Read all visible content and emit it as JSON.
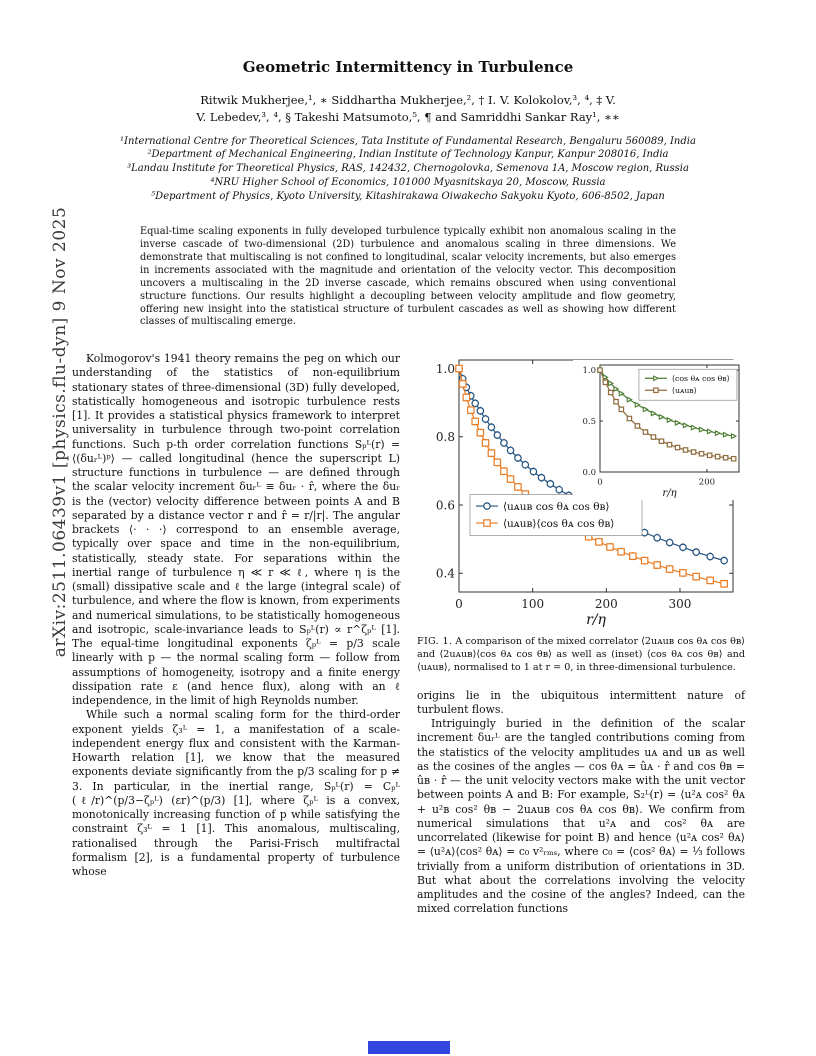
{
  "page": {
    "footer_box_color": "#3347e0"
  },
  "sidebar": {
    "arxiv_text": "arXiv:2511.06439v1  [physics.flu-dyn]  9 Nov 2025"
  },
  "header": {
    "title": "Geometric Intermittency in Turbulence",
    "authors_line1": "Ritwik Mukherjee,¹, ∗ Siddhartha Mukherjee,², † I. V. Kolokolov,³, ⁴, ‡ V.",
    "authors_line2": "V. Lebedev,³, ⁴, § Takeshi Matsumoto,⁵, ¶ and Samriddhi Sankar Ray¹, ∗∗",
    "affiliations": [
      "¹International Centre for Theoretical Sciences, Tata Institute of Fundamental Research, Bengaluru 560089, India",
      "²Department of Mechanical Engineering, Indian Institute of Technology Kanpur, Kanpur 208016, India",
      "³Landau Institute for Theoretical Physics, RAS, 142432, Chernogolovka, Semenova 1A, Moscow region, Russia",
      "⁴NRU Higher School of Economics, 101000 Myasnitskaya 20, Moscow, Russia",
      "⁵Department of Physics, Kyoto University, Kitashirakawa Oiwakecho Sakyoku Kyoto, 606-8502, Japan"
    ]
  },
  "abstract": "Equal-time scaling exponents in fully developed turbulence typically exhibit non anomalous scaling in the inverse cascade of two-dimensional (2D) turbulence and anomalous scaling in three dimensions. We demonstrate that multiscaling is not confined to longitudinal, scalar velocity increments, but also emerges in increments associated with the magnitude and orientation of the velocity vector. This decomposition uncovers a multiscaling in the 2D inverse cascade, which remains obscured when using conventional structure functions. Our results highlight a decoupling between velocity amplitude and flow geometry, offering new insight into the statistical structure of turbulent cascades as well as showing how different classes of multiscaling emerge.",
  "body": {
    "left_paragraphs": [
      "Kolmogorov's 1941 theory remains the peg on which our understanding of the statistics of non-equilibrium stationary states of three-dimensional (3D) fully developed, statistically homogeneous and isotropic turbulence rests [1]. It provides a statistical physics framework to interpret universality in turbulence through two-point correlation functions. Such p-th order correlation functions Sₚᴸ(r) = ⟨(δuᵣᴸ)ᵖ⟩ — called longitudinal (hence the superscript L) structure functions in turbulence — are defined through the scalar velocity increment δuᵣᴸ ≡ δuᵣ · r̂, where the δuᵣ is the (vector) velocity difference between points A and B separated by a distance vector r and r̂ = r/|r|. The angular brackets ⟨· · ·⟩ correspond to an ensemble average, typically over space and time in the non-equilibrium, statistically, steady state. For separations within the inertial range of turbulence η ≪ r ≪ ℓ, where η is the (small) dissipative scale and ℓ the large (integral scale) of turbulence, and where the flow is known, from experiments and numerical simulations, to be statistically homogeneous and isotropic, scale-invariance leads to Sₚᴸ(r) ∝ r^ζₚᴸ [1]. The equal-time longitudinal exponents ζₚᴸ = p/3 scale linearly with p — the normal scaling form — follow from assumptions of homogeneity, isotropy and a finite energy dissipation rate ε (and hence flux), along with an ℓ independence, in the limit of high Reynolds number.",
      "While such a normal scaling form for the third-order exponent yields ζ₃ᴸ = 1, a manifestation of a scale-independent energy flux and consistent with the Karman-Howarth relation [1], we know that the measured exponents deviate significantly from the p/3 scaling for p ≠ 3. In particular, in the inertial range, Sₚᴸ(r) = Cₚᴸ (ℓ/r)^(p/3−ζₚᴸ) (εr)^(p/3) [1], where ζₚᴸ is a convex, monotonically increasing function of p while satisfying the constraint ζ₃ᴸ = 1 [1]. This anomalous, multiscaling, rationalised through the Parisi-Frisch multifractal formalism [2], is a fundamental property of turbulence whose"
    ],
    "right_paragraphs": [
      "origins lie in the ubiquitous intermittent nature of turbulent flows.",
      "Intriguingly buried in the definition of the scalar increment δuᵣᴸ are the tangled contributions coming from the statistics of the velocity amplitudes uᴀ and uʙ as well as the cosines of the angles — cos θᴀ = ûᴀ · r̂ and cos θʙ = ûʙ · r̂ — the unit velocity vectors make with the unit vector between points A and B: For example, S₂ᴸ(r) = ⟨u²ᴀ cos² θᴀ + u²ʙ cos² θʙ − 2uᴀuʙ cos θᴀ cos θʙ⟩. We confirm from numerical simulations that u²ᴀ and cos² θᴀ are uncorrelated (likewise for point B) and hence ⟨u²ᴀ cos² θᴀ⟩ = ⟨u²ᴀ⟩⟨cos² θᴀ⟩ = c₀ v²ᵣₘₛ, where c₀ = ⟨cos² θᴀ⟩ = ⅓ follows trivially from a uniform distribution of orientations in 3D. But what about the correlations involving the velocity amplitudes and the cosine of the angles? Indeed, can the mixed correlation functions"
    ]
  },
  "figure": {
    "caption_label": "FIG. 1.",
    "caption_text": "A comparison of the mixed correlator ⟨2uᴀuʙ cos θᴀ cos θʙ⟩ and ⟨2uᴀuʙ⟩⟨cos θᴀ cos θʙ⟩ as well as (inset) ⟨cos θᴀ cos θʙ⟩ and ⟨uᴀuʙ⟩, normalised to 1 at r = 0, in three-dimensional turbulence.",
    "chart_data": {
      "type": "line",
      "xlabel": "r/η",
      "xlim": [
        0,
        372
      ],
      "ylim": [
        0.345,
        1.025
      ],
      "xticks": [
        0,
        100,
        200,
        300
      ],
      "yticks": [
        0.4,
        0.6,
        0.8,
        1.0
      ],
      "err": 0.012,
      "legend_position": "lower-left",
      "series": [
        {
          "name": "⟨uᴀuʙ cos θᴀ cos θʙ⟩",
          "color": "#20507d",
          "marker": "circle",
          "x": [
            0,
            5,
            10,
            16,
            22,
            29,
            36,
            44,
            52,
            61,
            70,
            80,
            90,
            101,
            112,
            124,
            136,
            149,
            162,
            176,
            190,
            205,
            220,
            236,
            252,
            269,
            286,
            304,
            322,
            341,
            360
          ],
          "y": [
            1.0,
            0.97,
            0.945,
            0.92,
            0.898,
            0.876,
            0.852,
            0.828,
            0.805,
            0.782,
            0.76,
            0.738,
            0.718,
            0.698,
            0.68,
            0.662,
            0.645,
            0.628,
            0.612,
            0.596,
            0.58,
            0.564,
            0.549,
            0.534,
            0.519,
            0.504,
            0.49,
            0.476,
            0.462,
            0.449,
            0.437
          ]
        },
        {
          "name": "⟨uᴀuʙ⟩⟨cos θᴀ cos θʙ⟩",
          "color": "#e97b22",
          "marker": "square",
          "x": [
            0,
            5,
            10,
            16,
            22,
            29,
            36,
            44,
            52,
            61,
            70,
            80,
            90,
            101,
            112,
            124,
            136,
            149,
            162,
            176,
            190,
            205,
            220,
            236,
            252,
            269,
            286,
            304,
            322,
            341,
            360
          ],
          "y": [
            1.0,
            0.955,
            0.915,
            0.878,
            0.845,
            0.812,
            0.782,
            0.752,
            0.725,
            0.699,
            0.676,
            0.653,
            0.632,
            0.611,
            0.592,
            0.573,
            0.556,
            0.539,
            0.523,
            0.507,
            0.492,
            0.477,
            0.463,
            0.45,
            0.437,
            0.424,
            0.412,
            0.401,
            0.39,
            0.379,
            0.369
          ]
        }
      ],
      "inset": {
        "xlabel": "r/η",
        "xlim": [
          0,
          260
        ],
        "ylim": [
          0,
          1.05
        ],
        "xticks": [
          0,
          200
        ],
        "yticks": [
          0.0,
          0.5,
          1.0
        ],
        "err": 0.02,
        "legend_position": "upper-right",
        "series": [
          {
            "name": "⟨cos θᴀ cos θʙ⟩",
            "color": "#4e7d35",
            "marker": "triangle",
            "x": [
              0,
              10,
              20,
              30,
              40,
              55,
              70,
              85,
              100,
              115,
              130,
              145,
              160,
              175,
              190,
              205,
              220,
              235,
              250
            ],
            "y": [
              1.0,
              0.93,
              0.87,
              0.815,
              0.77,
              0.71,
              0.66,
              0.615,
              0.575,
              0.54,
              0.51,
              0.483,
              0.458,
              0.436,
              0.416,
              0.398,
              0.381,
              0.366,
              0.352
            ]
          },
          {
            "name": "⟨uᴀuʙ⟩",
            "color": "#8f6b3d",
            "marker": "square",
            "x": [
              0,
              10,
              20,
              30,
              40,
              55,
              70,
              85,
              100,
              115,
              130,
              145,
              160,
              175,
              190,
              205,
              220,
              235,
              250
            ],
            "y": [
              1.0,
              0.88,
              0.78,
              0.69,
              0.615,
              0.525,
              0.452,
              0.392,
              0.343,
              0.302,
              0.268,
              0.24,
              0.216,
              0.196,
              0.179,
              0.164,
              0.151,
              0.14,
              0.13
            ]
          }
        ]
      }
    }
  }
}
